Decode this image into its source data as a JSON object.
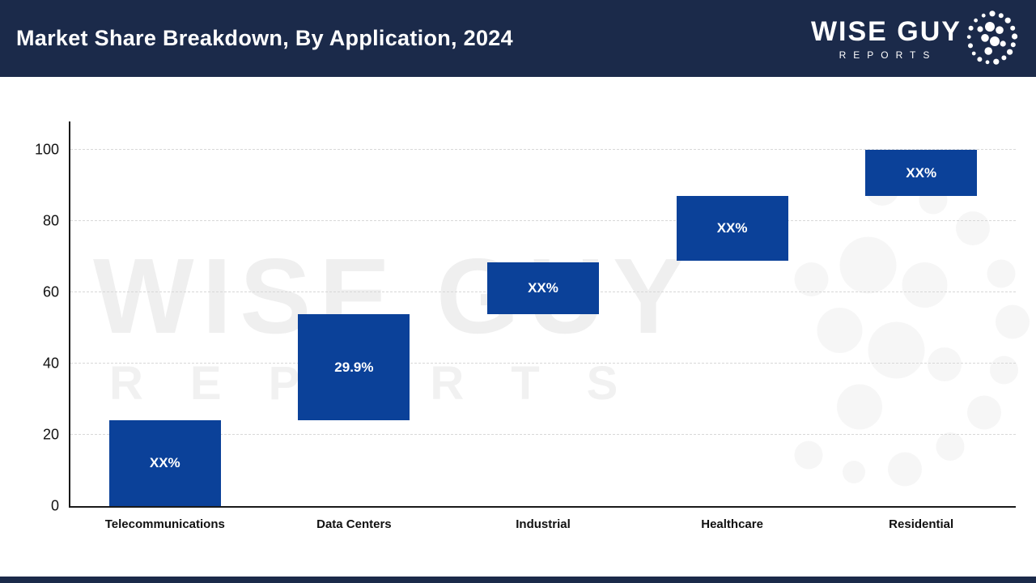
{
  "header": {
    "title": "Market Share Breakdown, By Application, 2024",
    "logo": {
      "line1": "WISE GUY",
      "line2": "REPORTS"
    }
  },
  "watermark": {
    "line1": "WISE GUY",
    "line2": "REPORTS"
  },
  "colors": {
    "header_bg": "#1b2a4a",
    "bar": "#0b4199",
    "bar_label": "#ffffff",
    "axis": "#1a1a1a",
    "gridline": "#d8d8d8"
  },
  "chart_data": {
    "type": "bar",
    "subtype": "waterfall",
    "title": "Market Share Breakdown, By Application, 2024",
    "categories": [
      "Telecommunications",
      "Data Centers",
      "Industrial",
      "Healthcare",
      "Residential"
    ],
    "bars": [
      {
        "category": "Telecommunications",
        "start": 0,
        "end": 24,
        "label": "XX%"
      },
      {
        "category": "Data Centers",
        "start": 24,
        "end": 53.9,
        "label": "29.9%"
      },
      {
        "category": "Industrial",
        "start": 54,
        "end": 68.5,
        "label": "XX%"
      },
      {
        "category": "Healthcare",
        "start": 69,
        "end": 87,
        "label": "XX%"
      },
      {
        "category": "Residential",
        "start": 87,
        "end": 100,
        "label": "XX%"
      }
    ],
    "y_ticks": [
      0,
      20,
      40,
      60,
      80,
      100
    ],
    "ylim": [
      0,
      108
    ],
    "xlabel": "",
    "ylabel": "",
    "grid": true,
    "legend": "none"
  }
}
